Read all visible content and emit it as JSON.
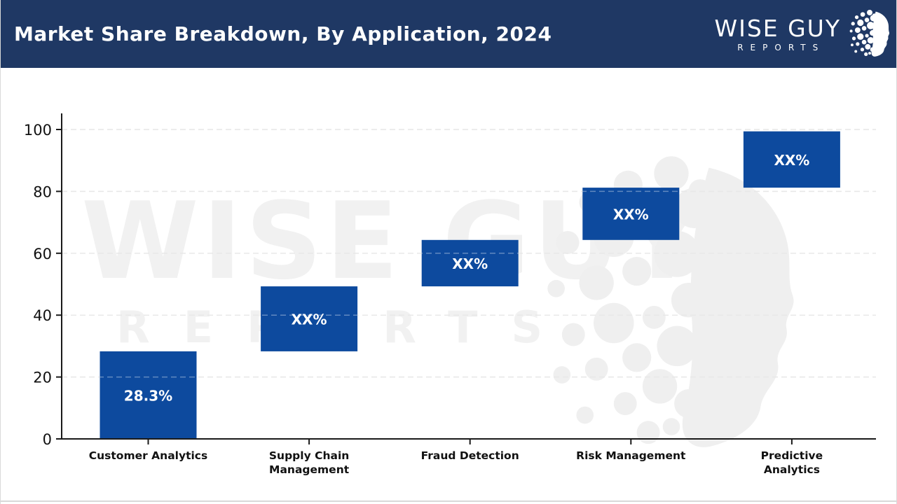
{
  "page": {
    "bg": "#ffffff",
    "frame_color": "#d9d9d9"
  },
  "header": {
    "bg": "#1f3864",
    "title": "Market Share Breakdown, By Application, 2024",
    "logo": {
      "wordmark": "WISE GUY",
      "subtext": "REPORTS"
    }
  },
  "watermark": {
    "wordmark": "WISE GUY",
    "subtext": "REPORTS"
  },
  "chart_data": {
    "type": "bar",
    "subtype": "waterfall-style floating percentage bars",
    "title": "Market Share Breakdown, By Application, 2024",
    "xlabel": "",
    "ylabel": "",
    "ylim": [
      0,
      105
    ],
    "y_ticks": [
      0,
      20,
      40,
      60,
      80,
      100
    ],
    "grid": "horizontal dashed gridlines",
    "legend": "none",
    "bar_color": "#0d4a9e",
    "bar_label_color": "#ffffff",
    "axis_color": "#1a1a1a",
    "grid_color": "#dcdcdc",
    "categories": [
      "Customer Analytics",
      "Supply Chain Management",
      "Fraud Detection",
      "Risk Management",
      "Predictive Analytics"
    ],
    "category_label_lines": [
      [
        "Customer Analytics"
      ],
      [
        "Supply Chain",
        "Management"
      ],
      [
        "Fraud Detection"
      ],
      [
        "Risk Management"
      ],
      [
        "Predictive",
        "Analytics"
      ]
    ],
    "segments": [
      {
        "category": "Customer Analytics",
        "start": 0,
        "end": 28.3,
        "label": "28.3%"
      },
      {
        "category": "Supply Chain Management",
        "start": 28.3,
        "end": 49.3,
        "label": "XX%"
      },
      {
        "category": "Fraud Detection",
        "start": 49.3,
        "end": 64.3,
        "label": "XX%"
      },
      {
        "category": "Risk Management",
        "start": 64.3,
        "end": 81.2,
        "label": "XX%"
      },
      {
        "category": "Predictive Analytics",
        "start": 81.2,
        "end": 99.4,
        "label": "XX%"
      }
    ]
  }
}
